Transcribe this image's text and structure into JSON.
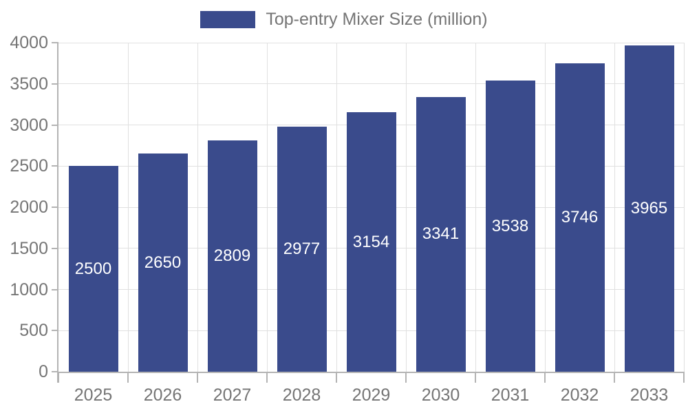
{
  "chart_data": {
    "type": "bar",
    "title": "",
    "categories": [
      "2025",
      "2026",
      "2027",
      "2028",
      "2029",
      "2030",
      "2031",
      "2032",
      "2033"
    ],
    "series": [
      {
        "name": "Top-entry Mixer Size (million)",
        "values": [
          2500,
          2650,
          2809,
          2977,
          3154,
          3341,
          3538,
          3746,
          3965
        ]
      }
    ],
    "xlabel": "",
    "ylabel": "",
    "ylim": [
      0,
      4000
    ],
    "yticks": [
      0,
      500,
      1000,
      1500,
      2000,
      2500,
      3000,
      3500,
      4000
    ],
    "grid": true,
    "value_labels_shown": true,
    "legend_position": "top-center",
    "colors": {
      "bar": "#3A4B8C",
      "value_label": "#FFFFFF",
      "axis_label": "#757575",
      "legend_label": "#757575",
      "gridline": "#E0E0E0",
      "axis_line": "#B3B3B3",
      "background": "#FFFFFF"
    }
  }
}
